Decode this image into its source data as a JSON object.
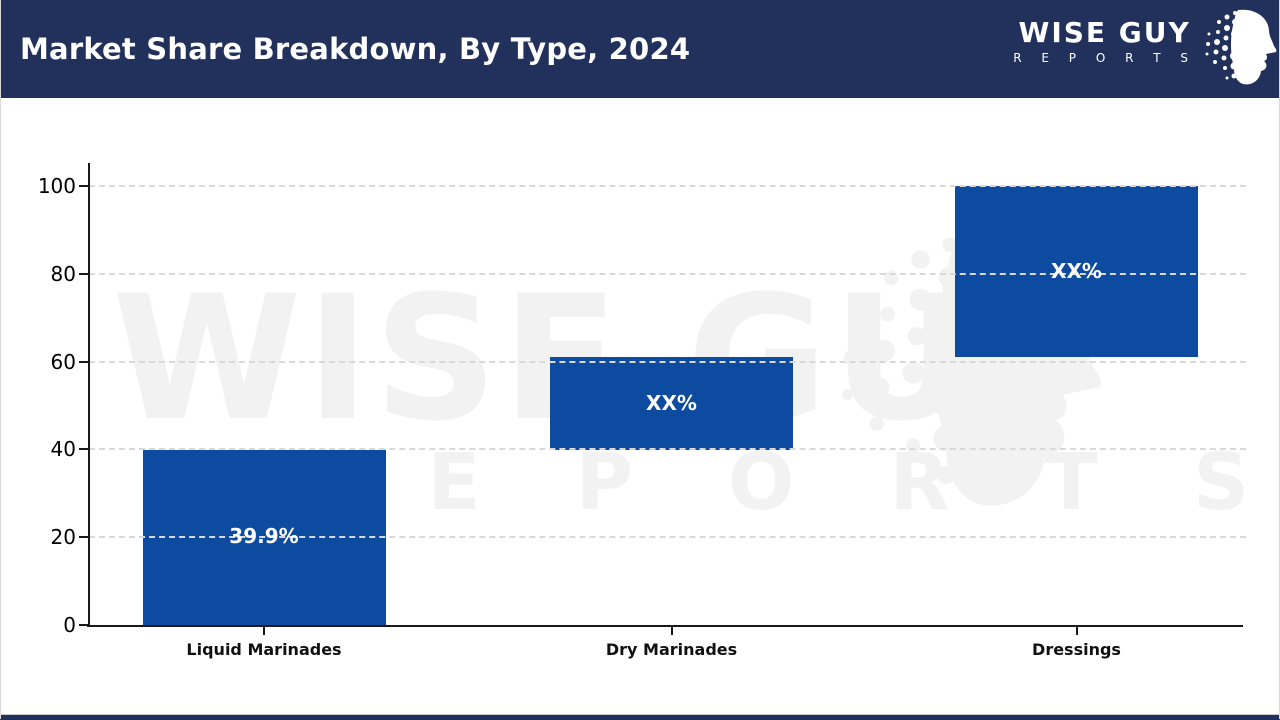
{
  "header": {
    "title": "Market Share Breakdown, By Type, 2024",
    "logo": {
      "line1": "WISE GUY",
      "line2": "R E P O R T S"
    }
  },
  "watermark": {
    "line1": "WISE GUY",
    "line2": "R E P O R T S"
  },
  "chart_data": {
    "type": "bar",
    "subtype": "floating-segment-breakdown",
    "title": "Market Share Breakdown, By Type, 2024",
    "categories": [
      "Liquid Marinades",
      "Dry Marinades",
      "Dressings"
    ],
    "bars": [
      {
        "category": "Liquid Marinades",
        "start": 0,
        "end": 39.9,
        "label": "39.9%"
      },
      {
        "category": "Dry Marinades",
        "start": 39.9,
        "end": 61,
        "label": "XX%"
      },
      {
        "category": "Dressings",
        "start": 61,
        "end": 100,
        "label": "XX%"
      }
    ],
    "y_ticks": [
      0,
      20,
      40,
      60,
      80,
      100
    ],
    "ylim": [
      0,
      105
    ],
    "xlabel": "",
    "ylabel": "",
    "grid": "horizontal-dashed",
    "legend": "none"
  },
  "colors": {
    "header_bg": "#21315c",
    "footer_bg": "#21315c",
    "bar": "#0d4ba0",
    "grid": "#d9d9d9",
    "axis": "#1a1a1a",
    "value_label": "#ffffff",
    "watermark": "#f2f2f2"
  }
}
